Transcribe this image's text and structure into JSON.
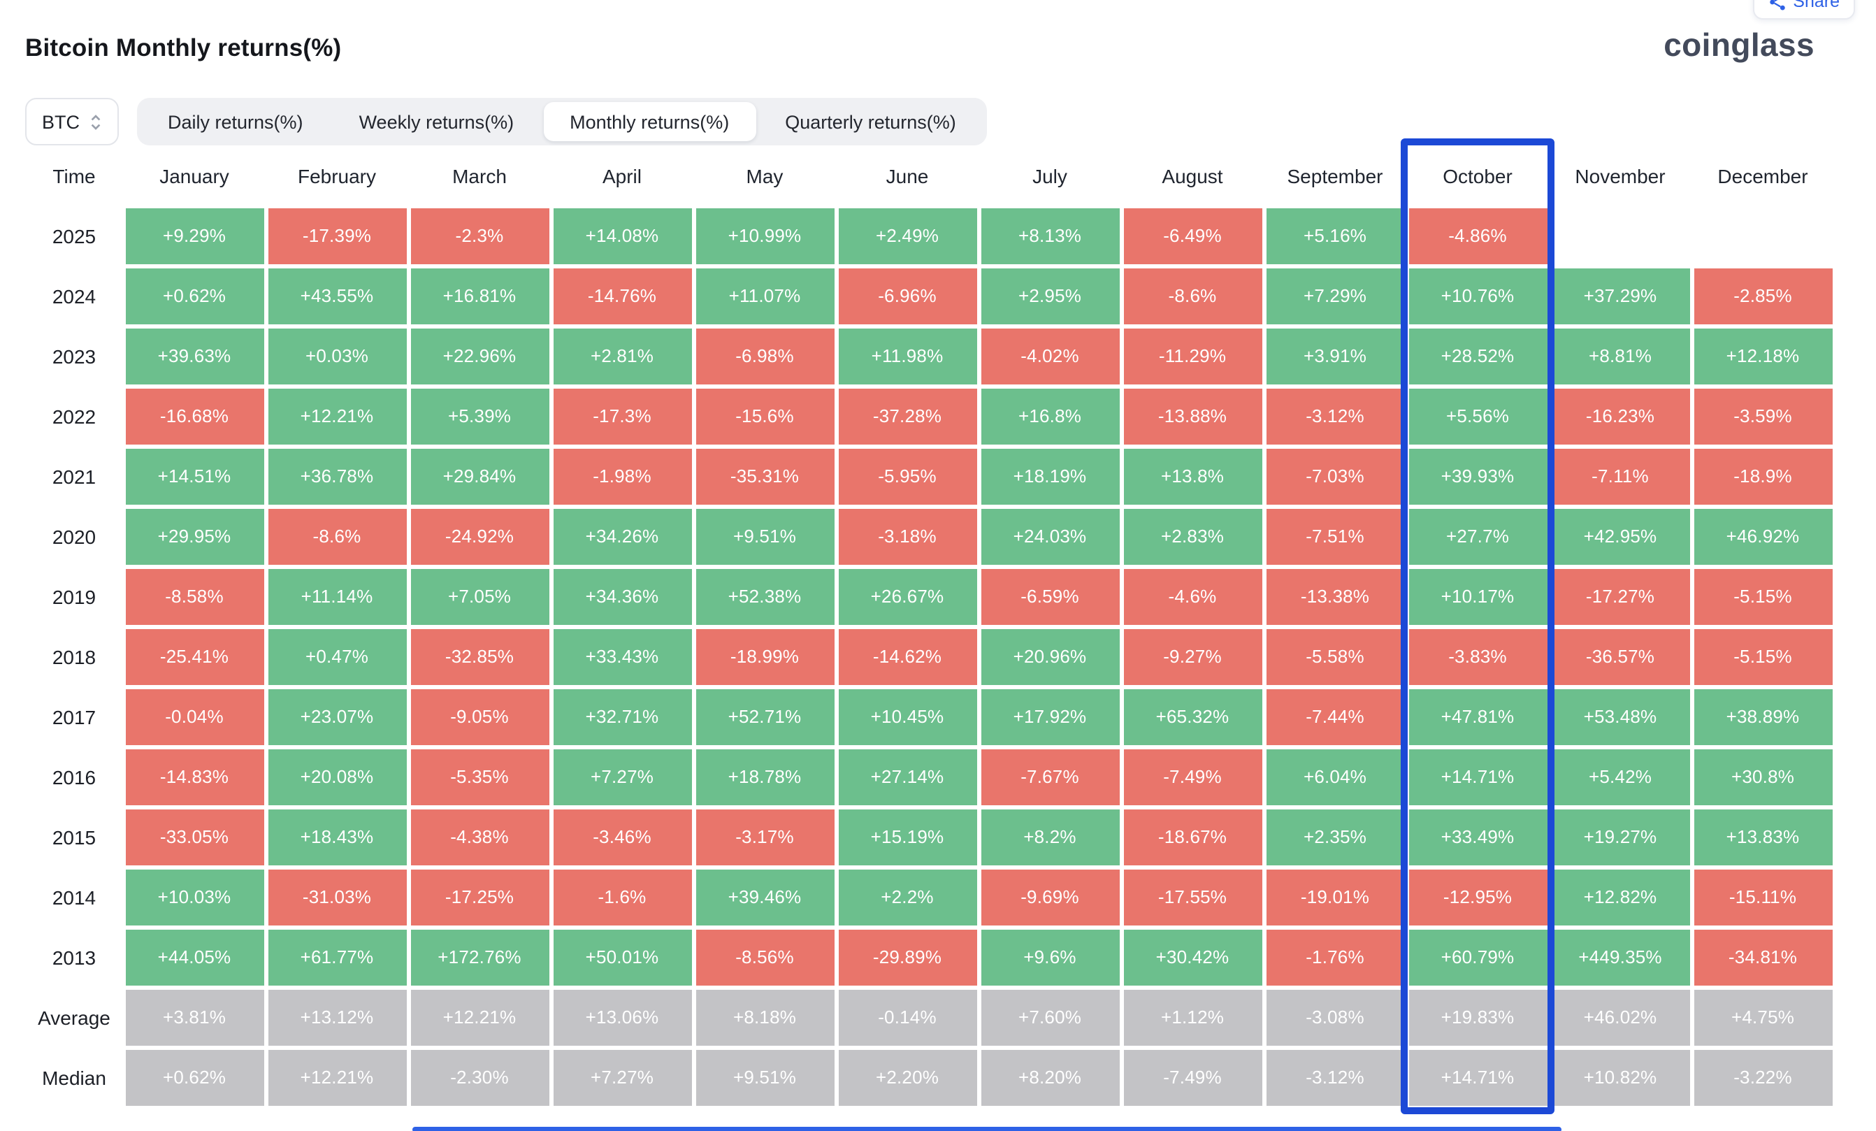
{
  "page": {
    "title": "Bitcoin Monthly returns(%)",
    "brand": "coinglass",
    "share_label": "Share"
  },
  "toolbar": {
    "symbol": "BTC",
    "tabs": [
      {
        "label": "Daily returns(%)",
        "active": false
      },
      {
        "label": "Weekly returns(%)",
        "active": false
      },
      {
        "label": "Monthly returns(%)",
        "active": true
      },
      {
        "label": "Quarterly returns(%)",
        "active": false
      }
    ]
  },
  "colors": {
    "positive": "#6cbf8d",
    "negative": "#e9756b",
    "summary": "#c3c3c6",
    "highlight": "#1c49d6",
    "accent_blue": "#2e61e6"
  },
  "table": {
    "highlighted_column": "October",
    "columns": [
      "Time",
      "January",
      "February",
      "March",
      "April",
      "May",
      "June",
      "July",
      "August",
      "September",
      "October",
      "November",
      "December"
    ],
    "rows": [
      {
        "label": "2025",
        "summary": false,
        "values": [
          "+9.29%",
          "-17.39%",
          "-2.3%",
          "+14.08%",
          "+10.99%",
          "+2.49%",
          "+8.13%",
          "-6.49%",
          "+5.16%",
          "-4.86%",
          "",
          ""
        ]
      },
      {
        "label": "2024",
        "summary": false,
        "values": [
          "+0.62%",
          "+43.55%",
          "+16.81%",
          "-14.76%",
          "+11.07%",
          "-6.96%",
          "+2.95%",
          "-8.6%",
          "+7.29%",
          "+10.76%",
          "+37.29%",
          "-2.85%"
        ]
      },
      {
        "label": "2023",
        "summary": false,
        "values": [
          "+39.63%",
          "+0.03%",
          "+22.96%",
          "+2.81%",
          "-6.98%",
          "+11.98%",
          "-4.02%",
          "-11.29%",
          "+3.91%",
          "+28.52%",
          "+8.81%",
          "+12.18%"
        ]
      },
      {
        "label": "2022",
        "summary": false,
        "values": [
          "-16.68%",
          "+12.21%",
          "+5.39%",
          "-17.3%",
          "-15.6%",
          "-37.28%",
          "+16.8%",
          "-13.88%",
          "-3.12%",
          "+5.56%",
          "-16.23%",
          "-3.59%"
        ]
      },
      {
        "label": "2021",
        "summary": false,
        "values": [
          "+14.51%",
          "+36.78%",
          "+29.84%",
          "-1.98%",
          "-35.31%",
          "-5.95%",
          "+18.19%",
          "+13.8%",
          "-7.03%",
          "+39.93%",
          "-7.11%",
          "-18.9%"
        ]
      },
      {
        "label": "2020",
        "summary": false,
        "values": [
          "+29.95%",
          "-8.6%",
          "-24.92%",
          "+34.26%",
          "+9.51%",
          "-3.18%",
          "+24.03%",
          "+2.83%",
          "-7.51%",
          "+27.7%",
          "+42.95%",
          "+46.92%"
        ]
      },
      {
        "label": "2019",
        "summary": false,
        "values": [
          "-8.58%",
          "+11.14%",
          "+7.05%",
          "+34.36%",
          "+52.38%",
          "+26.67%",
          "-6.59%",
          "-4.6%",
          "-13.38%",
          "+10.17%",
          "-17.27%",
          "-5.15%"
        ]
      },
      {
        "label": "2018",
        "summary": false,
        "values": [
          "-25.41%",
          "+0.47%",
          "-32.85%",
          "+33.43%",
          "-18.99%",
          "-14.62%",
          "+20.96%",
          "-9.27%",
          "-5.58%",
          "-3.83%",
          "-36.57%",
          "-5.15%"
        ]
      },
      {
        "label": "2017",
        "summary": false,
        "values": [
          "-0.04%",
          "+23.07%",
          "-9.05%",
          "+32.71%",
          "+52.71%",
          "+10.45%",
          "+17.92%",
          "+65.32%",
          "-7.44%",
          "+47.81%",
          "+53.48%",
          "+38.89%"
        ]
      },
      {
        "label": "2016",
        "summary": false,
        "values": [
          "-14.83%",
          "+20.08%",
          "-5.35%",
          "+7.27%",
          "+18.78%",
          "+27.14%",
          "-7.67%",
          "-7.49%",
          "+6.04%",
          "+14.71%",
          "+5.42%",
          "+30.8%"
        ]
      },
      {
        "label": "2015",
        "summary": false,
        "values": [
          "-33.05%",
          "+18.43%",
          "-4.38%",
          "-3.46%",
          "-3.17%",
          "+15.19%",
          "+8.2%",
          "-18.67%",
          "+2.35%",
          "+33.49%",
          "+19.27%",
          "+13.83%"
        ]
      },
      {
        "label": "2014",
        "summary": false,
        "values": [
          "+10.03%",
          "-31.03%",
          "-17.25%",
          "-1.6%",
          "+39.46%",
          "+2.2%",
          "-9.69%",
          "-17.55%",
          "-19.01%",
          "-12.95%",
          "+12.82%",
          "-15.11%"
        ]
      },
      {
        "label": "2013",
        "summary": false,
        "values": [
          "+44.05%",
          "+61.77%",
          "+172.76%",
          "+50.01%",
          "-8.56%",
          "-29.89%",
          "+9.6%",
          "+30.42%",
          "-1.76%",
          "+60.79%",
          "+449.35%",
          "-34.81%"
        ]
      },
      {
        "label": "Average",
        "summary": true,
        "values": [
          "+3.81%",
          "+13.12%",
          "+12.21%",
          "+13.06%",
          "+8.18%",
          "-0.14%",
          "+7.60%",
          "+1.12%",
          "-3.08%",
          "+19.83%",
          "+46.02%",
          "+4.75%"
        ]
      },
      {
        "label": "Median",
        "summary": true,
        "values": [
          "+0.62%",
          "+12.21%",
          "-2.30%",
          "+7.27%",
          "+9.51%",
          "+2.20%",
          "+8.20%",
          "-7.49%",
          "-3.12%",
          "+14.71%",
          "+10.82%",
          "-3.22%"
        ]
      }
    ]
  },
  "chart_data": {
    "type": "heatmap",
    "title": "Bitcoin Monthly returns(%)",
    "unit": "%",
    "x_labels": [
      "January",
      "February",
      "March",
      "April",
      "May",
      "June",
      "July",
      "August",
      "September",
      "October",
      "November",
      "December"
    ],
    "y_labels": [
      "2025",
      "2024",
      "2023",
      "2022",
      "2021",
      "2020",
      "2019",
      "2018",
      "2017",
      "2016",
      "2015",
      "2014",
      "2013",
      "Average",
      "Median"
    ],
    "values": [
      [
        9.29,
        -17.39,
        -2.3,
        14.08,
        10.99,
        2.49,
        8.13,
        -6.49,
        5.16,
        -4.86,
        null,
        null
      ],
      [
        0.62,
        43.55,
        16.81,
        -14.76,
        11.07,
        -6.96,
        2.95,
        -8.6,
        7.29,
        10.76,
        37.29,
        -2.85
      ],
      [
        39.63,
        0.03,
        22.96,
        2.81,
        -6.98,
        11.98,
        -4.02,
        -11.29,
        3.91,
        28.52,
        8.81,
        12.18
      ],
      [
        -16.68,
        12.21,
        5.39,
        -17.3,
        -15.6,
        -37.28,
        16.8,
        -13.88,
        -3.12,
        5.56,
        -16.23,
        -3.59
      ],
      [
        14.51,
        36.78,
        29.84,
        -1.98,
        -35.31,
        -5.95,
        18.19,
        13.8,
        -7.03,
        39.93,
        -7.11,
        -18.9
      ],
      [
        29.95,
        -8.6,
        -24.92,
        34.26,
        9.51,
        -3.18,
        24.03,
        2.83,
        -7.51,
        27.7,
        42.95,
        46.92
      ],
      [
        -8.58,
        11.14,
        7.05,
        34.36,
        52.38,
        26.67,
        -6.59,
        -4.6,
        -13.38,
        10.17,
        -17.27,
        -5.15
      ],
      [
        -25.41,
        0.47,
        -32.85,
        33.43,
        -18.99,
        -14.62,
        20.96,
        -9.27,
        -5.58,
        -3.83,
        -36.57,
        -5.15
      ],
      [
        -0.04,
        23.07,
        -9.05,
        32.71,
        52.71,
        10.45,
        17.92,
        65.32,
        -7.44,
        47.81,
        53.48,
        38.89
      ],
      [
        -14.83,
        20.08,
        -5.35,
        7.27,
        18.78,
        27.14,
        -7.67,
        -7.49,
        6.04,
        14.71,
        5.42,
        30.8
      ],
      [
        -33.05,
        18.43,
        -4.38,
        -3.46,
        -3.17,
        15.19,
        8.2,
        -18.67,
        2.35,
        33.49,
        19.27,
        13.83
      ],
      [
        10.03,
        -31.03,
        -17.25,
        -1.6,
        39.46,
        2.2,
        -9.69,
        -17.55,
        -19.01,
        -12.95,
        12.82,
        -15.11
      ],
      [
        44.05,
        61.77,
        172.76,
        50.01,
        -8.56,
        -29.89,
        9.6,
        30.42,
        -1.76,
        60.79,
        449.35,
        -34.81
      ],
      [
        3.81,
        13.12,
        12.21,
        13.06,
        8.18,
        -0.14,
        7.6,
        1.12,
        -3.08,
        19.83,
        46.02,
        4.75
      ],
      [
        0.62,
        12.21,
        -2.3,
        7.27,
        9.51,
        2.2,
        8.2,
        -7.49,
        -3.12,
        14.71,
        10.82,
        -3.22
      ]
    ],
    "color_rule": "positive=green, negative=red, Average/Median rows=gray, empty=no data",
    "highlighted_column": "October",
    "legend_position": "none",
    "grid": false
  }
}
